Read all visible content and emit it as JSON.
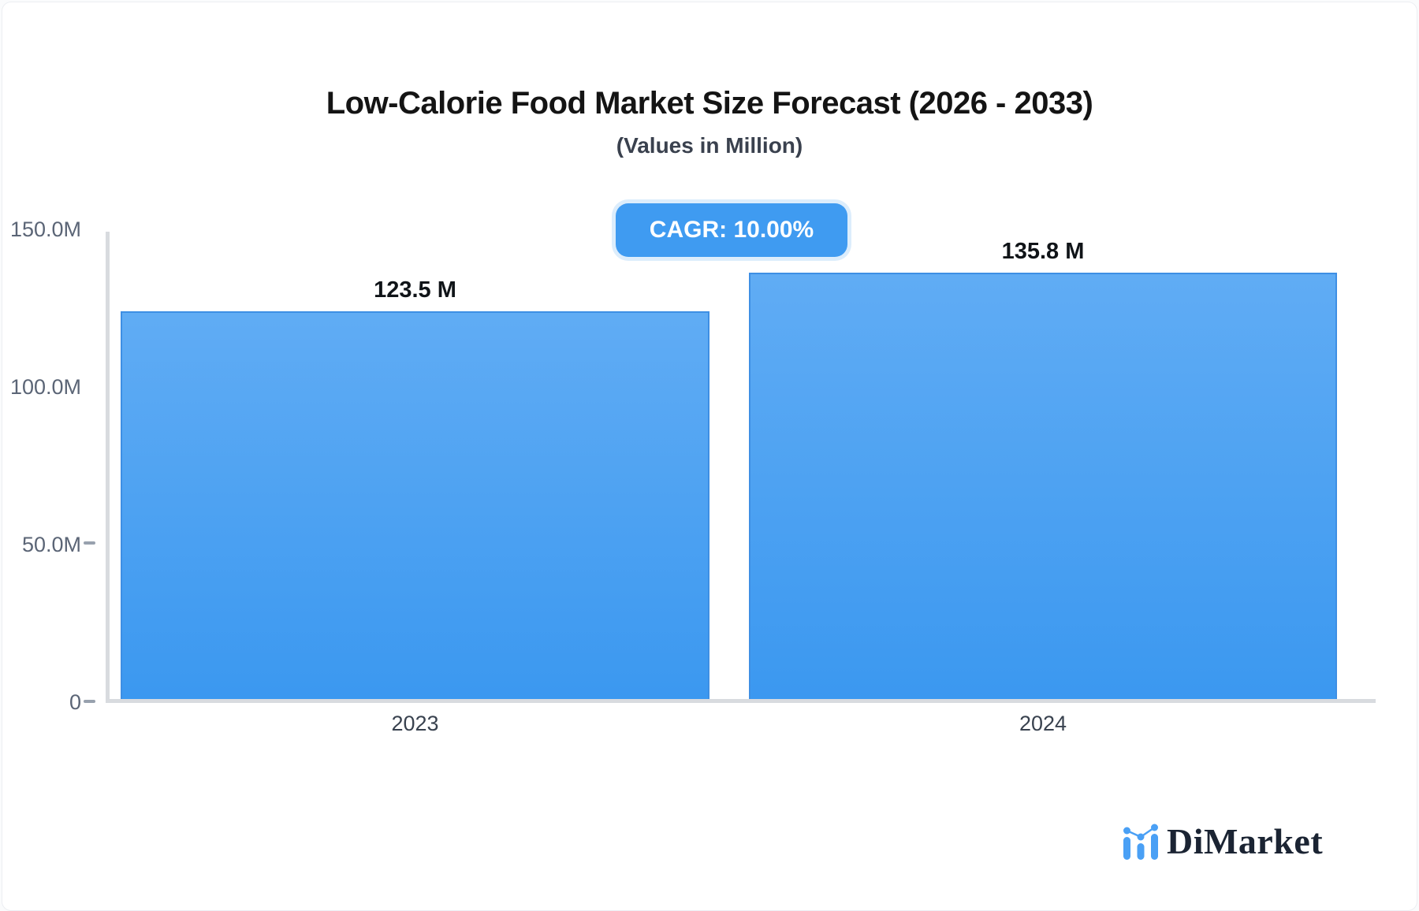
{
  "header": {
    "title": "Low-Calorie Food Market Size Forecast (2026 - 2033)",
    "subtitle": "(Values in Million)"
  },
  "badge": {
    "label": "CAGR: 10.00%"
  },
  "chart_data": {
    "type": "bar",
    "title": "Low-Calorie Food Market Size Forecast (2026 - 2033)",
    "subtitle": "(Values in Million)",
    "categories": [
      "2023",
      "2024"
    ],
    "values": [
      123.5,
      135.8
    ],
    "value_labels": [
      "123.5 M",
      "135.8 M"
    ],
    "cagr": "10.00%",
    "ylabel": "",
    "xlabel": "",
    "ylim": [
      0,
      150
    ],
    "ytick_labels": [
      "150.0M",
      "100.0M",
      "50.0M",
      "0"
    ],
    "ytick_values": [
      150,
      100,
      50,
      0
    ],
    "grid": false,
    "legend": "none",
    "bar_gradient_top": "#60acf4",
    "bar_gradient_bottom": "#3b98f0",
    "bar_border_color": "#3e8fe4",
    "axis_color": "#d8dbdf",
    "accent_color": "#3f9bf1"
  },
  "watermark": {
    "brand": "DiMarket",
    "icon": "bar-chart-logo-icon",
    "icon_color": "#4aa0f5",
    "text_color": "#1b2433"
  }
}
